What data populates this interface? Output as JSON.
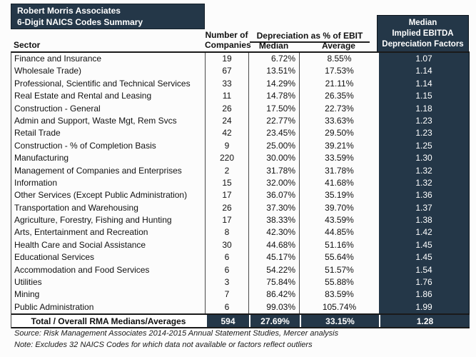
{
  "title": {
    "line1": "Robert Morris Associates",
    "line2": "6-Digit NAICS Codes Summary"
  },
  "header": {
    "sector": "Sector",
    "companies_line1": "Number of",
    "companies_line2": "Companies",
    "depreciation_group": "Depreciation as % of EBIT",
    "median": "Median",
    "average": "Average",
    "factors_line1": "Median",
    "factors_line2": "Implied EBITDA",
    "factors_line3": "Depreciation Factors"
  },
  "table": {
    "rows": [
      {
        "sector": "Finance and Insurance",
        "companies": "19",
        "median": "6.72%",
        "average": "8.55%",
        "factor": "1.07"
      },
      {
        "sector": "Wholesale Trade)",
        "companies": "67",
        "median": "13.51%",
        "average": "17.53%",
        "factor": "1.14"
      },
      {
        "sector": "Professional, Scientific and Technical Services",
        "companies": "33",
        "median": "14.29%",
        "average": "21.11%",
        "factor": "1.14"
      },
      {
        "sector": "Real Estate and Rental and Leasing",
        "companies": "11",
        "median": "14.78%",
        "average": "26.35%",
        "factor": "1.15"
      },
      {
        "sector": "Construction - General",
        "companies": "26",
        "median": "17.50%",
        "average": "22.73%",
        "factor": "1.18"
      },
      {
        "sector": "Admin and Support, Waste Mgt, Rem Svcs",
        "companies": "24",
        "median": "22.77%",
        "average": "33.63%",
        "factor": "1.23"
      },
      {
        "sector": "Retail Trade",
        "companies": "42",
        "median": "23.45%",
        "average": "29.50%",
        "factor": "1.23"
      },
      {
        "sector": "Construction - % of Completion Basis",
        "companies": "9",
        "median": "25.00%",
        "average": "39.21%",
        "factor": "1.25"
      },
      {
        "sector": "Manufacturing",
        "companies": "220",
        "median": "30.00%",
        "average": "33.59%",
        "factor": "1.30"
      },
      {
        "sector": "Management of Companies and Enterprises",
        "companies": "2",
        "median": "31.78%",
        "average": "31.78%",
        "factor": "1.32"
      },
      {
        "sector": "Information",
        "companies": "15",
        "median": "32.00%",
        "average": "41.68%",
        "factor": "1.32"
      },
      {
        "sector": "Other Services (Except Public Administration)",
        "companies": "17",
        "median": "36.07%",
        "average": "35.19%",
        "factor": "1.36"
      },
      {
        "sector": "Transportation and Warehousing",
        "companies": "26",
        "median": "37.30%",
        "average": "39.70%",
        "factor": "1.37"
      },
      {
        "sector": "Agriculture, Forestry, Fishing and Hunting",
        "companies": "17",
        "median": "38.33%",
        "average": "43.59%",
        "factor": "1.38"
      },
      {
        "sector": "Arts, Entertainment and Recreation",
        "companies": "8",
        "median": "42.30%",
        "average": "44.85%",
        "factor": "1.42"
      },
      {
        "sector": "Health Care and Social Assistance",
        "companies": "30",
        "median": "44.68%",
        "average": "51.16%",
        "factor": "1.45"
      },
      {
        "sector": "Educational Services",
        "companies": "6",
        "median": "45.17%",
        "average": "55.64%",
        "factor": "1.45"
      },
      {
        "sector": "Accommodation and Food Services",
        "companies": "6",
        "median": "54.22%",
        "average": "51.57%",
        "factor": "1.54"
      },
      {
        "sector": "Utilities",
        "companies": "3",
        "median": "75.84%",
        "average": "55.88%",
        "factor": "1.76"
      },
      {
        "sector": "Mining",
        "companies": "7",
        "median": "86.42%",
        "average": "83.59%",
        "factor": "1.86"
      },
      {
        "sector": "Public Administration",
        "companies": "6",
        "median": "99.03%",
        "average": "105.74%",
        "factor": "1.99"
      }
    ],
    "total": {
      "label": "Total / Overall RMA Medians/Averages",
      "companies": "594",
      "median": "27.69%",
      "average": "33.15%",
      "factor": "1.28"
    }
  },
  "footnotes": {
    "source": "Source: Risk Management Associates 2014-2015 Annual Statement Studies, Mercer analysis",
    "note": "Note: Excludes 32 NAICS Codes for which data not available or factors reflect outliers"
  },
  "colors": {
    "dark_navy": "#243748",
    "header_text": "#ffffff",
    "grid_border": "#4a4a4a"
  }
}
